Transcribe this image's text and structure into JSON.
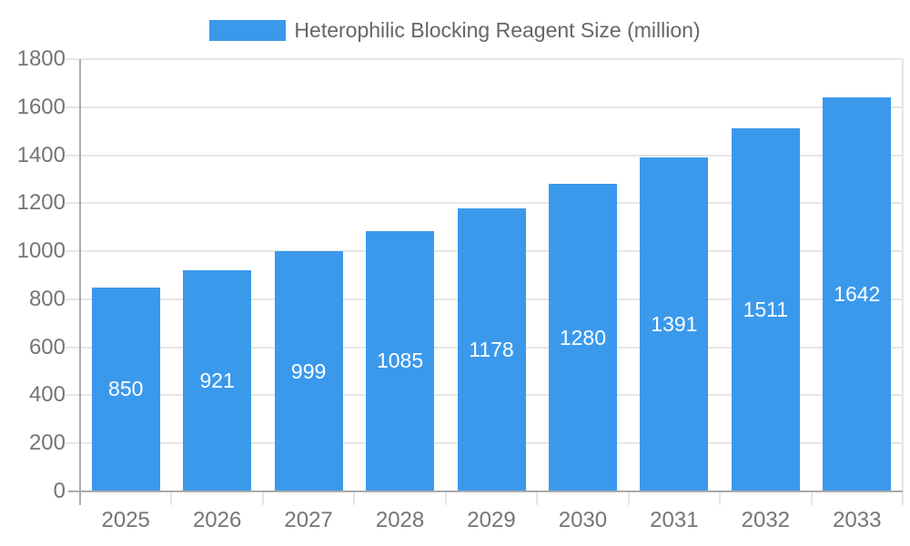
{
  "chart_data": {
    "type": "bar",
    "title": "Heterophilic Blocking Reagent Size (million)",
    "categories": [
      "2025",
      "2026",
      "2027",
      "2028",
      "2029",
      "2030",
      "2031",
      "2032",
      "2033"
    ],
    "values": [
      850,
      921,
      999,
      1085,
      1178,
      1280,
      1391,
      1511,
      1642
    ],
    "xlabel": "",
    "ylabel": "",
    "ylim": [
      0,
      1800
    ],
    "ytick_step": 200,
    "ytick_labels": [
      "0",
      "200",
      "400",
      "600",
      "800",
      "1000",
      "1200",
      "1400",
      "1600",
      "1800"
    ],
    "grid": true,
    "legend_position": "top-center",
    "value_labels": "inside-center",
    "colors": {
      "bar": "#3b99ec",
      "value_text": "#ffffff",
      "title_text": "#666666",
      "axis_text": "#757575",
      "gridline": "#e6e6e6",
      "axis_line": "#aaaaaa",
      "background": "#ffffff"
    }
  }
}
